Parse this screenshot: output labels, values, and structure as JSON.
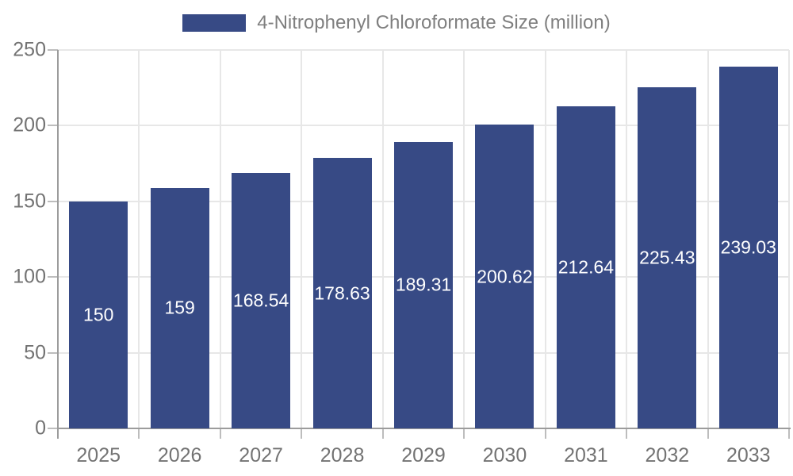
{
  "legend": {
    "label": "4-Nitrophenyl Chloroformate Size (million)"
  },
  "chart_data": {
    "type": "bar",
    "title": "",
    "xlabel": "",
    "ylabel": "",
    "categories": [
      "2025",
      "2026",
      "2027",
      "2028",
      "2029",
      "2030",
      "2031",
      "2032",
      "2033"
    ],
    "values": [
      150,
      159,
      168.54,
      178.63,
      189.31,
      200.62,
      212.64,
      225.43,
      239.03
    ],
    "value_labels": [
      "150",
      "159",
      "168.54",
      "178.63",
      "189.31",
      "200.62",
      "212.64",
      "225.43",
      "239.03"
    ],
    "series_name": "4-Nitrophenyl Chloroformate Size (million)",
    "ylim": [
      0,
      250
    ],
    "yticks": [
      0,
      50,
      100,
      150,
      200,
      250
    ],
    "grid": true,
    "legend_position": "top-center",
    "value_label_position": "inside-center"
  },
  "colors": {
    "bar": "#374a85",
    "bar_label": "#ffffff",
    "grid": "#e7e7e7",
    "axis": "#9c9c9c",
    "tick": "#bdbdbd",
    "axis_text": "#737373",
    "legend_text": "#7f7f7f",
    "background": "#ffffff"
  }
}
